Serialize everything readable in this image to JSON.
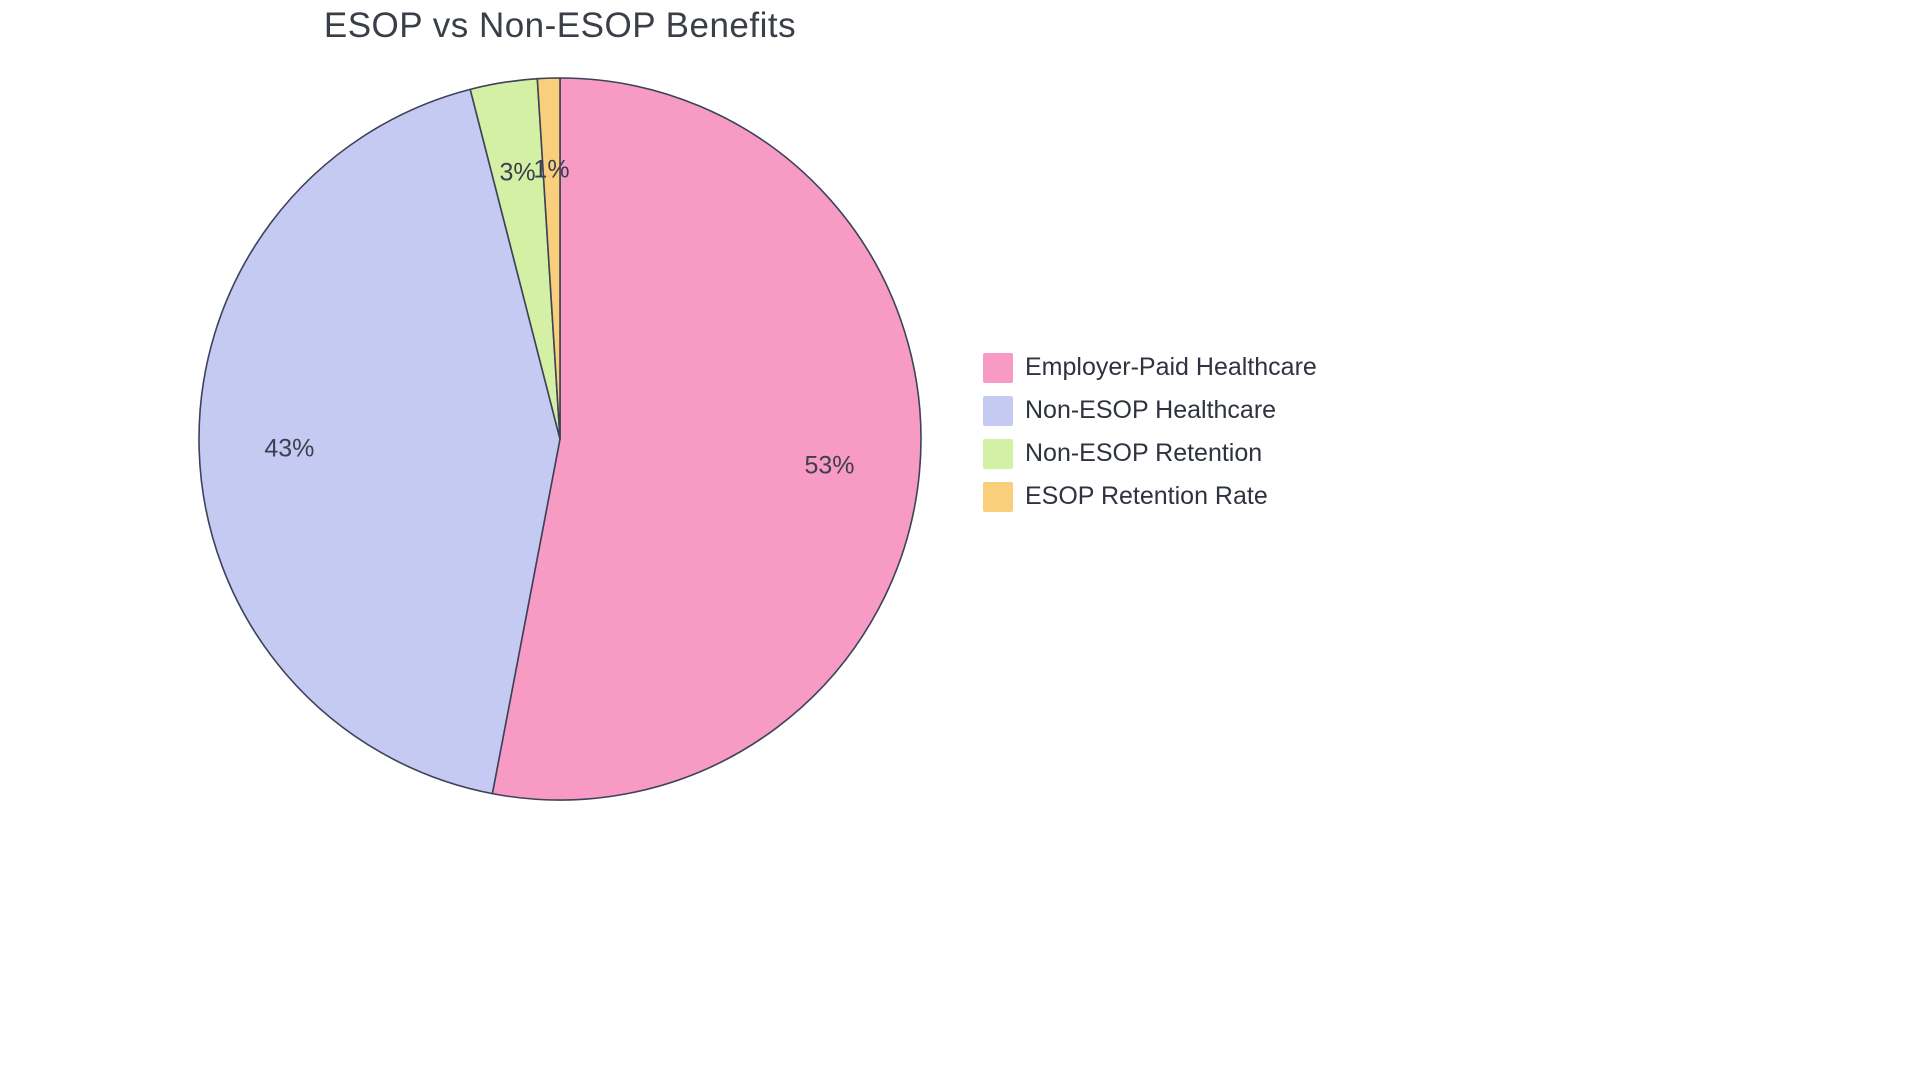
{
  "chart_data": {
    "type": "pie",
    "title": "ESOP vs Non-ESOP Benefits",
    "slices": [
      {
        "label": "Employer-Paid Healthcare",
        "value": 53,
        "display": "53%",
        "color": "#F79BC4"
      },
      {
        "label": "Non-ESOP Healthcare",
        "value": 43,
        "display": "43%",
        "color": "#C5CAF2"
      },
      {
        "label": "Non-ESOP Retention",
        "value": 3,
        "display": "3%",
        "color": "#D3F0A5"
      },
      {
        "label": "ESOP Retention Rate",
        "value": 1,
        "display": "1%",
        "color": "#F9CF7B"
      }
    ],
    "start_angle_deg": 0,
    "direction": "clockwise",
    "legend_position": "right",
    "grid": "off",
    "stroke_color": "#3D425A",
    "label_color": "#3B3F4F",
    "background": "#FFFFFF"
  }
}
